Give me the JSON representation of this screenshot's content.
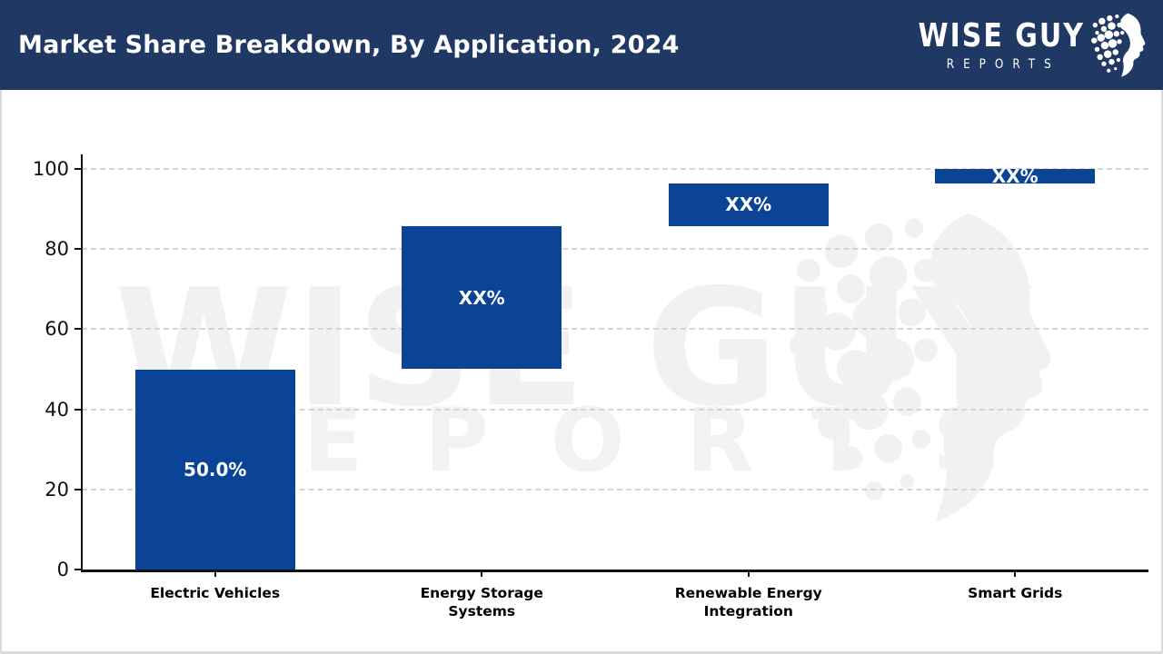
{
  "header": {
    "bg_color": "#203864",
    "title": "Market Share Breakdown, By Application, 2024",
    "logo": {
      "wordmark": "WISE GUY",
      "subtext": "REPORTS"
    }
  },
  "watermark": {
    "wordmark": "WISE GUY",
    "subtext": "REPORTS"
  },
  "chart_data": {
    "type": "bar",
    "subtype": "waterfall-stacked-percentage",
    "title": "Market Share Breakdown, By Application, 2024",
    "categories": [
      "Electric Vehicles",
      "Energy Storage\nSystems",
      "Renewable Energy\nIntegration",
      "Smart Grids"
    ],
    "segments": [
      {
        "category": "Electric Vehicles",
        "start": 0,
        "end": 50,
        "label": "50.0%"
      },
      {
        "category": "Energy Storage Systems",
        "start": 50,
        "end": 85.7,
        "label": "XX%"
      },
      {
        "category": "Renewable Energy Integration",
        "start": 85.7,
        "end": 96.4,
        "label": "XX%"
      },
      {
        "category": "Smart Grids",
        "start": 96.4,
        "end": 100,
        "label": "XX%"
      }
    ],
    "ylim": [
      0,
      100
    ],
    "yticks": [
      0,
      20,
      40,
      60,
      80,
      100
    ],
    "xlabel": "",
    "ylabel": "",
    "grid": "horizontal-dashed",
    "legend": "none",
    "colors": {
      "bar": "#0b4397",
      "bar_label_text": "#ffffff",
      "grid": "#d4d4d4",
      "axis": "#111111",
      "tick_label": "#111111"
    }
  }
}
